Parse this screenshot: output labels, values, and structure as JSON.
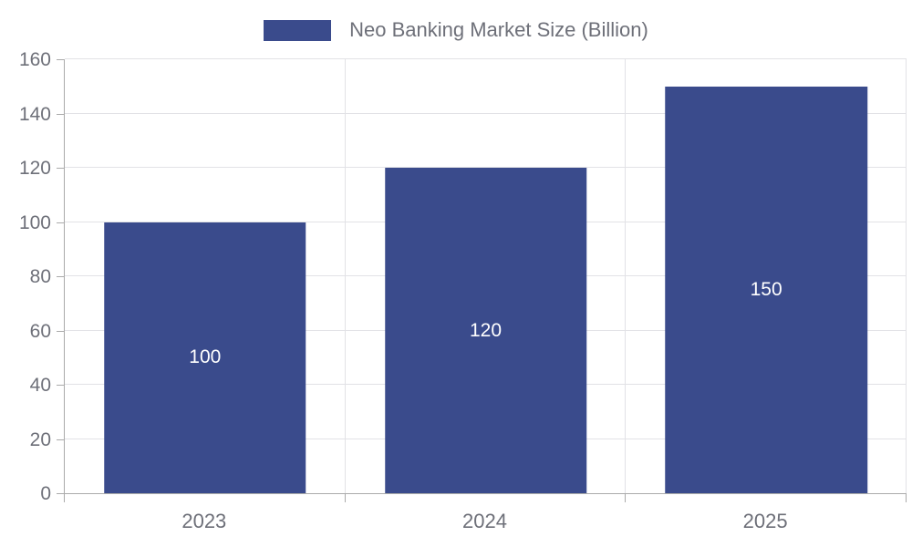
{
  "legend": {
    "label": "Neo Banking Market Size (Billion)"
  },
  "chart_data": {
    "type": "bar",
    "title": "Neo Banking Market Size (Billion)",
    "categories": [
      "2023",
      "2024",
      "2025"
    ],
    "values": [
      100,
      120,
      150
    ],
    "bar_labels": [
      "100",
      "120",
      "150"
    ],
    "xlabel": "",
    "ylabel": "",
    "ylim": [
      0,
      160
    ],
    "ytick_step": 20,
    "ytick_labels": [
      "0",
      "20",
      "40",
      "60",
      "80",
      "100",
      "120",
      "140",
      "160"
    ],
    "grid": "horizontal and vertical category boundaries",
    "legend_position": "top-center",
    "legend_entries": [
      "Neo Banking Market Size (Billion)"
    ],
    "bar_color": "#3A4B8C",
    "bar_value_label_color": "#FFFFFF",
    "axis_color": "#AAAAAA",
    "grid_color": "#E2E2E6",
    "text_color": "#6E7079"
  }
}
